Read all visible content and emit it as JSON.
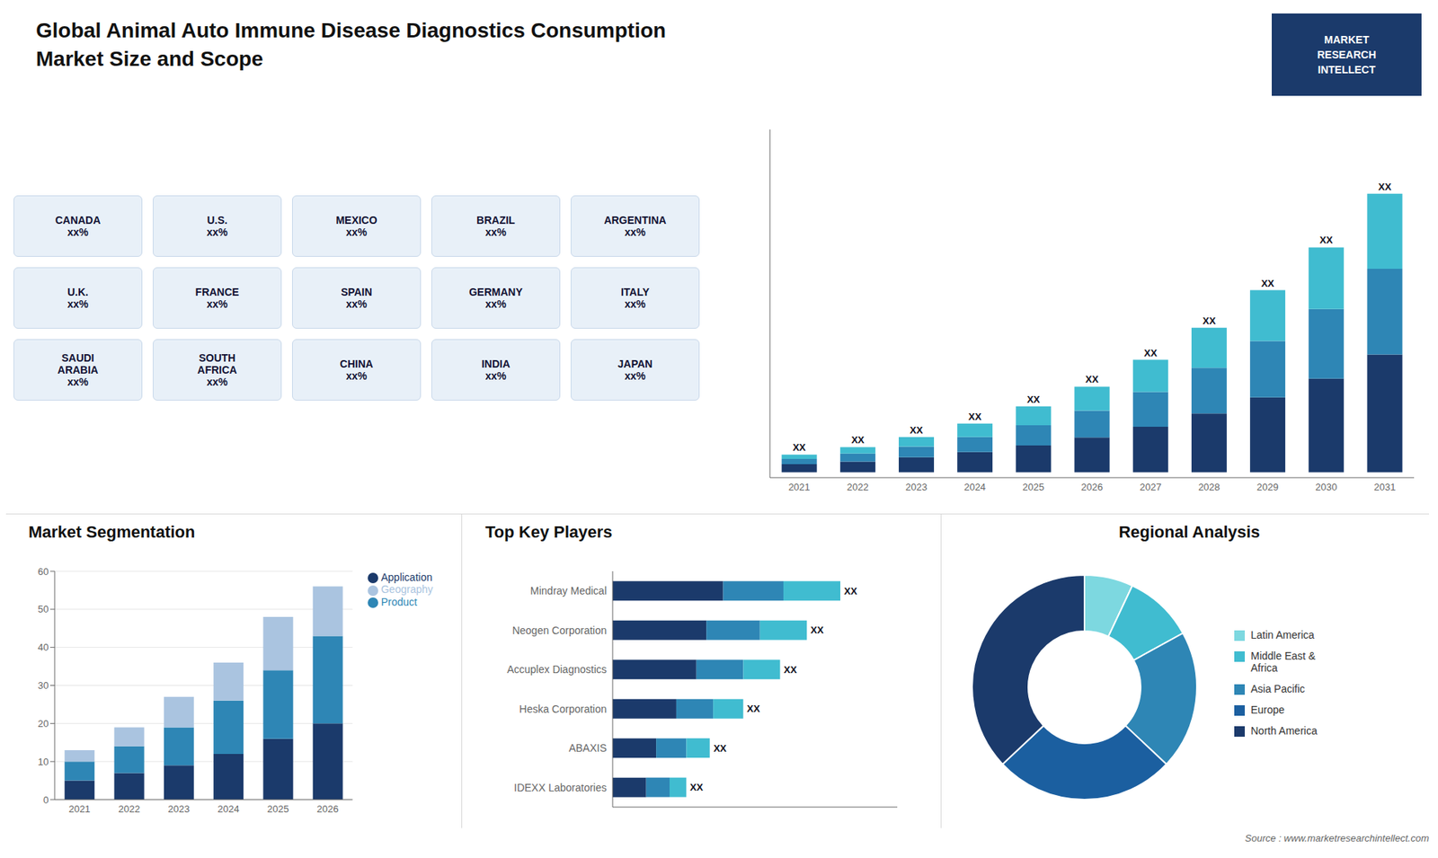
{
  "chart_data": [
    {
      "type": "bar",
      "title": "Global Animal Auto Immune Disease Diagnostics Consumption",
      "subtitle": "Market Size and Scope",
      "categories": [
        "2021",
        "2022",
        "2023",
        "2024",
        "2025",
        "2026",
        "2027",
        "2028",
        "2029",
        "2030",
        "2031"
      ],
      "series": [
        {
          "color": "#1b3a6b",
          "values": [
            1.5,
            2.0,
            2.8,
            3.8,
            5.0,
            6.5,
            8.5,
            11.0,
            14.0,
            17.5,
            22.0
          ]
        },
        {
          "color": "#2e86b5",
          "values": [
            1.0,
            1.5,
            2.0,
            2.8,
            3.8,
            5.0,
            6.5,
            8.5,
            10.5,
            13.0,
            16.0
          ]
        },
        {
          "color": "#40bcd0",
          "values": [
            0.8,
            1.2,
            1.8,
            2.5,
            3.5,
            4.5,
            6.0,
            7.5,
            9.5,
            11.5,
            14.0
          ],
          "data_labels": true,
          "value_labels": [
            "XX",
            "XX",
            "XX",
            "XX",
            "XX",
            "XX",
            "XX",
            "XX",
            "XX",
            "XX",
            "XX"
          ]
        }
      ],
      "stacked": true,
      "ylim": [
        -1,
        64
      ],
      "tick_labels": "x",
      "grid": false
    },
    {
      "type": "map",
      "annotations": [
        "CANADA\nxx%",
        "U.S.\nxx%",
        "MEXICO\nxx%",
        "BRAZIL\nxx%",
        "ARGENTINA\nxx%",
        "U.K.\nxx%",
        "FRANCE\nxx%",
        "SPAIN\nxx%",
        "GERMANY\nxx%",
        "ITALY\nxx%",
        "SAUDI\nARABIA\nxx%",
        "SOUTH\nAFRICA\nxx%",
        "CHINA\nxx%",
        "INDIA\nxx%",
        "JAPAN\nxx%"
      ]
    },
    {
      "type": "logo",
      "annotations": [
        "MARKET",
        "RESEARCH",
        "INTELLECT"
      ]
    },
    {
      "type": "bar",
      "title": "Market Segmentation",
      "categories": [
        "2021",
        "2022",
        "2023",
        "2024",
        "2025",
        "2026"
      ],
      "series": [
        {
          "name": "Application",
          "color": "#1b3a6b",
          "values": [
            5,
            7,
            9,
            12,
            16,
            20
          ]
        },
        {
          "name": "Product",
          "color": "#2e86b5",
          "values": [
            5,
            7,
            10,
            14,
            18,
            23
          ]
        },
        {
          "name": "Geography",
          "color": "#aac4e0",
          "values": [
            3,
            5,
            8,
            10,
            14,
            13
          ]
        }
      ],
      "stacked": true,
      "ylim": [
        0,
        60
      ],
      "yticks": [
        0,
        10,
        20,
        30,
        40,
        50,
        60
      ],
      "grid": true,
      "legend": "right"
    },
    {
      "type": "bar",
      "title": "Top Key Players",
      "orientation": "horizontal",
      "categories": [
        "Mindray Medical",
        "Neogen Corporation",
        "Accuplex Diagnostics",
        "Heska Corporation",
        "ABAXIS",
        "IDEXX Laboratories"
      ],
      "series": [
        {
          "color": "#1b3a6b",
          "values": [
            33,
            28,
            25,
            19,
            13,
            10
          ]
        },
        {
          "color": "#2e86b5",
          "values": [
            18,
            16,
            14,
            11,
            9,
            7
          ]
        },
        {
          "color": "#40bcd0",
          "values": [
            17,
            14,
            11,
            9,
            7,
            5
          ],
          "data_labels": true,
          "value_labels": [
            "XX",
            "XX",
            "XX",
            "XX",
            "XX",
            "XX"
          ]
        }
      ],
      "stacked": true,
      "xlim": [
        0,
        85
      ],
      "tick_labels": "y",
      "grid": false
    },
    {
      "type": "pie",
      "title": "Regional Analysis",
      "categories": [
        "Latin America",
        "Middle East &\nAfrica",
        "Asia Pacific",
        "Europe",
        "North America"
      ],
      "values": [
        7,
        10,
        20,
        26,
        37
      ],
      "colors": [
        "#7dd8e0",
        "#40bcd0",
        "#2e86b5",
        "#1b5fa0",
        "#1b3a6b"
      ],
      "legend": "right"
    },
    {
      "type": "note",
      "annotations": [
        "Source : www.marketresearchintellect.com"
      ]
    }
  ]
}
